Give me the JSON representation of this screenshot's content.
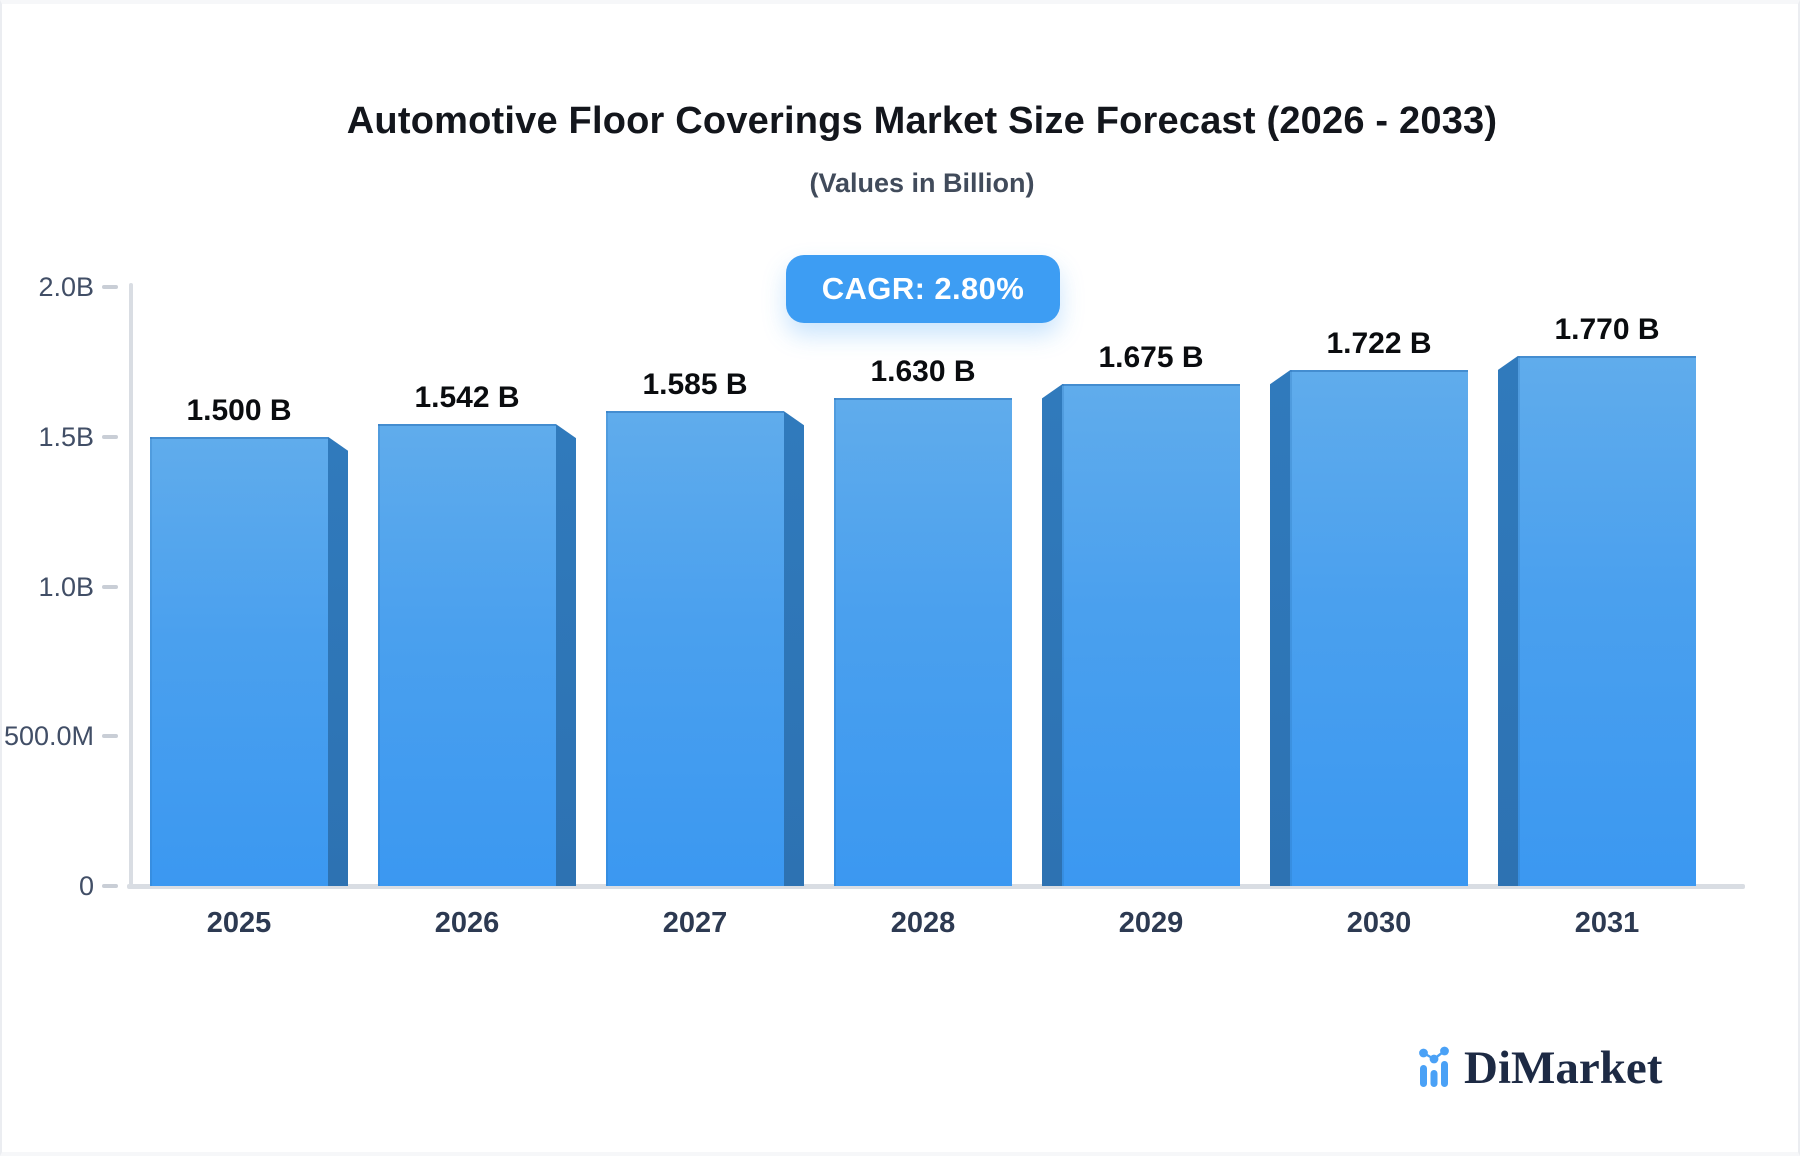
{
  "header": {
    "title": "Automotive Floor Coverings Market Size Forecast (2026 - 2033)",
    "subtitle": "(Values in Billion)"
  },
  "badge": {
    "label": "CAGR: 2.80%",
    "bg": "#3d9df3"
  },
  "chart_data": {
    "type": "bar",
    "title": "Automotive Floor Coverings Market Size Forecast (2026 - 2033)",
    "subtitle": "(Values in Billion)",
    "unit": "Billion",
    "categories": [
      "2025",
      "2026",
      "2027",
      "2028",
      "2029",
      "2030",
      "2031"
    ],
    "values": [
      1.5,
      1.542,
      1.585,
      1.63,
      1.675,
      1.722,
      1.77
    ],
    "value_labels": [
      "1.500 B",
      "1.542 B",
      "1.585 B",
      "1.630 B",
      "1.675 B",
      "1.722 B",
      "1.770 B"
    ],
    "ylim": [
      0,
      2.0
    ],
    "yticks": {
      "labels": [
        "2.0B",
        "1.5B",
        "1.0B",
        "500.0M",
        "0"
      ],
      "values": [
        2.0,
        1.5,
        1.0,
        0.5,
        0
      ]
    },
    "grid": "off",
    "legend": "none",
    "annotations": [
      "CAGR: 2.80%"
    ],
    "bar_color_top": "#60acec",
    "bar_color_bottom": "#3b98f1",
    "bar_side_color": "#2e75b6"
  },
  "footer": {
    "brand": "DiMarket"
  },
  "colors": {
    "accent_blue": "#3d9df3",
    "bar_blue": "#4aa0ee",
    "bar_side_blue": "#2e75b6",
    "axis_gray": "#d9dde3",
    "title_text": "#13161c",
    "logo_navy": "#1d2a44",
    "logo_blue": "#4aa1f6"
  }
}
